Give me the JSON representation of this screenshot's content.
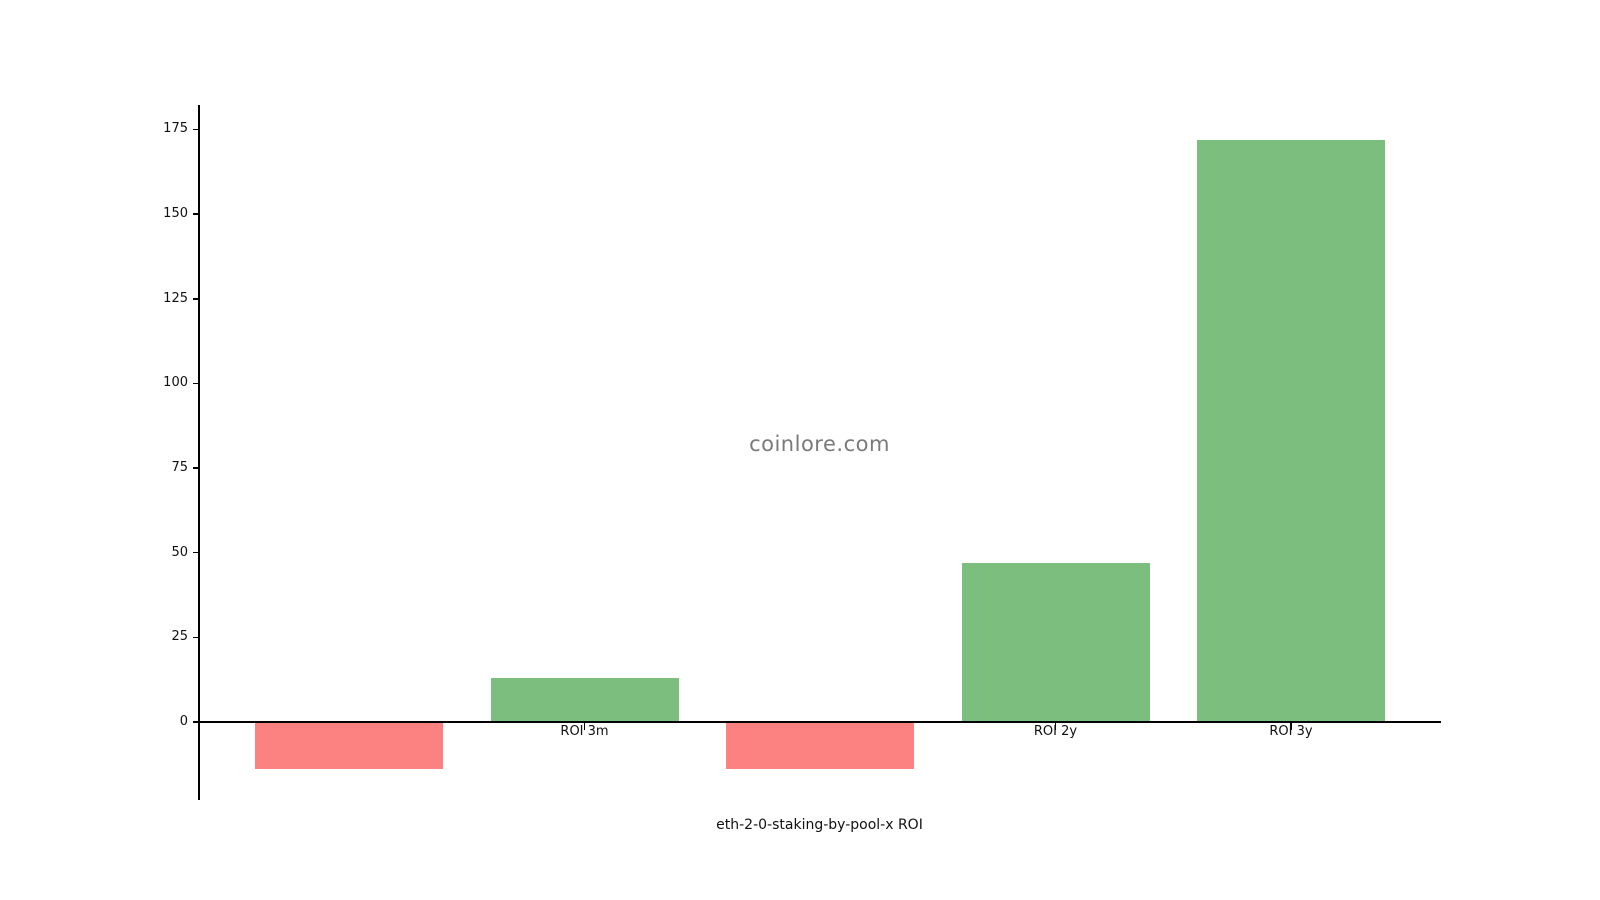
{
  "watermark": "coinlore.com",
  "chart_data": {
    "type": "bar",
    "title": "eth-2-0-staking-by-pool-x ROI",
    "xlabel": "",
    "ylabel": "",
    "categories": [
      "",
      "ROI 3m",
      "",
      "ROI 2y",
      "ROI 3y"
    ],
    "values": [
      -14,
      13,
      -14,
      47,
      172
    ],
    "bar_colors": [
      "#fc8181",
      "#7cbe7d",
      "#fc8181",
      "#7cbe7d",
      "#7cbe7d"
    ],
    "yticks": [
      0,
      25,
      50,
      75,
      100,
      125,
      150,
      175
    ],
    "ylim": [
      -23,
      182
    ],
    "grid": false,
    "legend": null,
    "colors": {
      "positive": "#7cbe7d",
      "negative": "#fc8181",
      "axis": "#000000",
      "watermark_text": "#7a7a7a",
      "background": "#ffffff"
    }
  }
}
